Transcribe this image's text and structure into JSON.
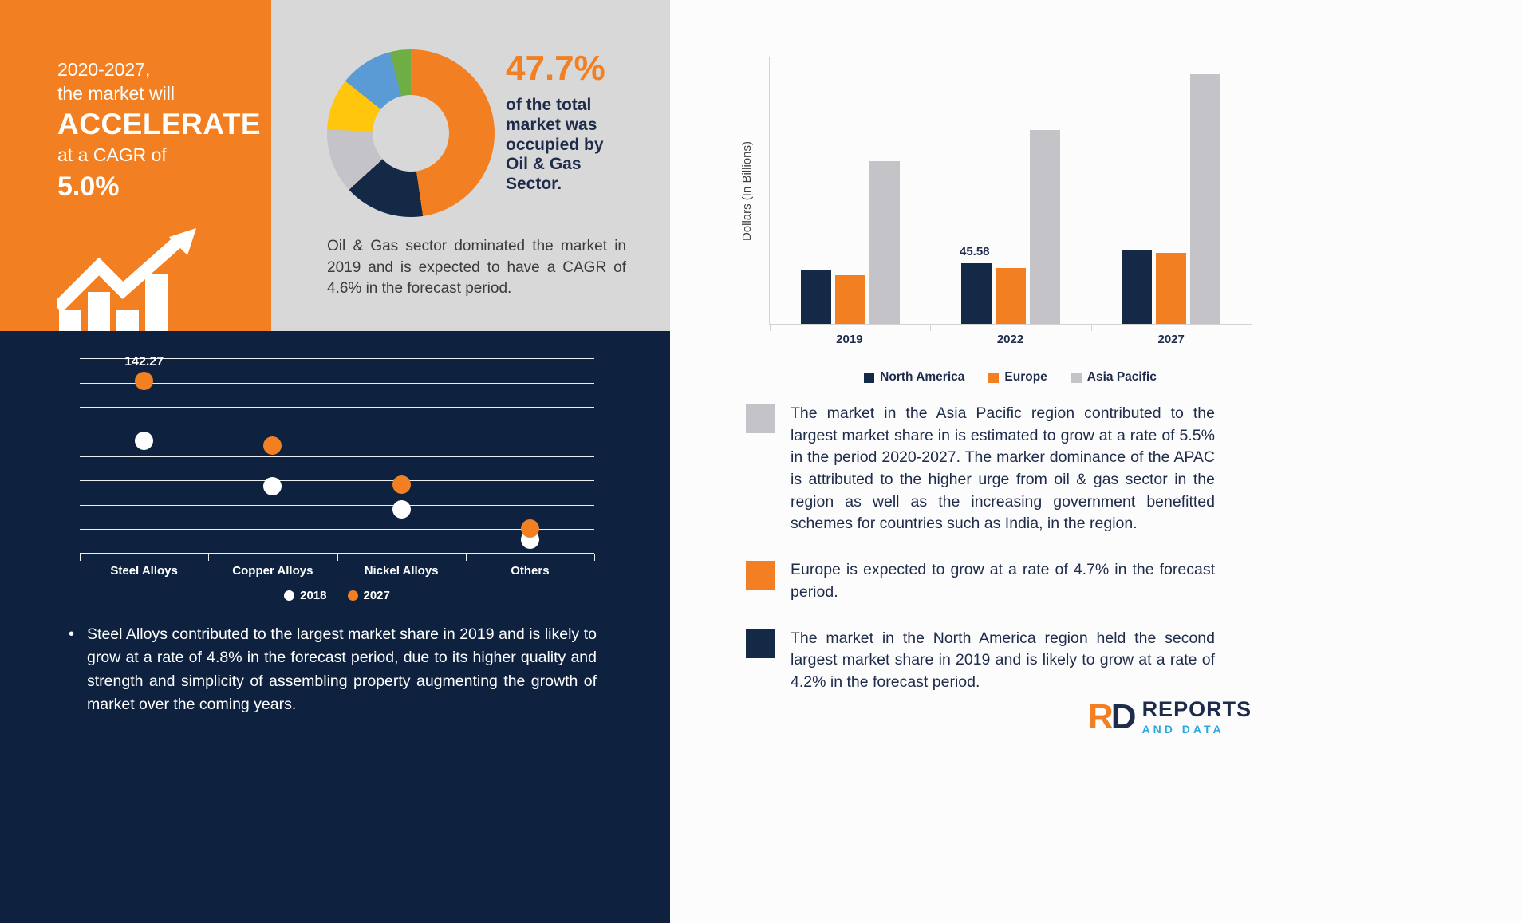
{
  "colors": {
    "orange": "#F28022",
    "navy": "#132946",
    "navy_panel": "#0E2240",
    "panel_gray": "#D8D8D8",
    "chart_gray": "#C3C3C8",
    "yellow": "#FFC60B",
    "blue": "#5B9BD5",
    "green": "#6FAE44",
    "white": "#FFFFFF",
    "logo_blue": "#29A8E0"
  },
  "accelerate_panel": {
    "period": "2020-2027,",
    "line2": "the market will",
    "accelerate": "ACCELERATE",
    "line4": "at a CAGR of",
    "cagr": "5.0%"
  },
  "oil_gas_panel": {
    "value": "47.7%",
    "value_caption": "of the total market was occupied by Oil & Gas Sector.",
    "body": "Oil & Gas sector dominated the market in 2019 and is expected to have a CAGR of 4.6% in the forecast period."
  },
  "alloys_panel": {
    "bullet_marker": "•",
    "bullet": "Steel Alloys contributed to the largest market share in 2019 and is likely to grow at a rate of 4.8% in the forecast period, due to its higher quality and strength and simplicity of assembling property augmenting the growth of market over the coming years."
  },
  "region_bullets": [
    {
      "color_key": "chart_gray",
      "text": "The market in the Asia Pacific region contributed to the largest market share in is estimated to grow at a rate of 5.5% in the period 2020-2027. The marker dominance of the APAC is attributed to the higher urge from oil & gas sector in the region as well as the increasing government benefitted schemes for countries such as India, in the region."
    },
    {
      "color_key": "orange",
      "text": "Europe is expected to grow at a rate of 4.7% in the forecast period."
    },
    {
      "color_key": "navy",
      "text": "The market in the North America region held the second largest market share in 2019 and is likely to grow at a rate of 4.2% in the forecast period."
    }
  ],
  "logo": {
    "monogram_r": "R",
    "monogram_d": "D",
    "title": "REPORTS",
    "subtitle": "AND DATA"
  },
  "chart_data": [
    {
      "id": "oil_gas_donut",
      "type": "pie",
      "donut": true,
      "annotation": "47.7% of the total market was occupied by Oil & Gas Sector.",
      "slices": [
        {
          "label": "Oil & Gas",
          "value": 47.7,
          "color_key": "orange"
        },
        {
          "label": "segment-navy",
          "value": 15.5,
          "color_key": "navy"
        },
        {
          "label": "segment-gray",
          "value": 12.5,
          "color_key": "chart_gray"
        },
        {
          "label": "segment-yellow",
          "value": 10.0,
          "color_key": "yellow"
        },
        {
          "label": "segment-blue",
          "value": 10.3,
          "color_key": "blue"
        },
        {
          "label": "segment-green",
          "value": 4.0,
          "color_key": "green"
        }
      ]
    },
    {
      "id": "alloys_dot_plot",
      "type": "scatter",
      "categories": [
        "Steel Alloys",
        "Copper Alloys",
        "Nickel Alloys",
        "Others"
      ],
      "series": [
        {
          "name": "2018",
          "color_key": "white",
          "values": [
            93,
            56,
            37,
            12
          ]
        },
        {
          "name": "2027",
          "color_key": "orange",
          "values": [
            142.27,
            89,
            57,
            21
          ]
        }
      ],
      "data_labels": [
        {
          "series": "2027",
          "category": "Steel Alloys",
          "text": "142.27"
        }
      ],
      "ylim": [
        0,
        160
      ],
      "gridline_step": 20,
      "grid": true,
      "legend_position": "bottom"
    },
    {
      "id": "regional_bar_chart",
      "type": "bar",
      "title": "",
      "xlabel": "",
      "ylabel": "Dollars (In Billions)",
      "categories": [
        "2019",
        "2022",
        "2027"
      ],
      "series": [
        {
          "name": "North America",
          "color_key": "navy",
          "values": [
            40,
            45.58,
            55
          ]
        },
        {
          "name": "Europe",
          "color_key": "orange",
          "values": [
            36.5,
            42,
            53
          ]
        },
        {
          "name": "Asia Pacific",
          "color_key": "chart_gray",
          "values": [
            122,
            145,
            187
          ]
        }
      ],
      "data_labels": [
        {
          "series": "North America",
          "category": "2022",
          "text": "45.58"
        }
      ],
      "ylim": [
        0,
        200
      ],
      "grid": false,
      "legend_position": "bottom"
    }
  ]
}
